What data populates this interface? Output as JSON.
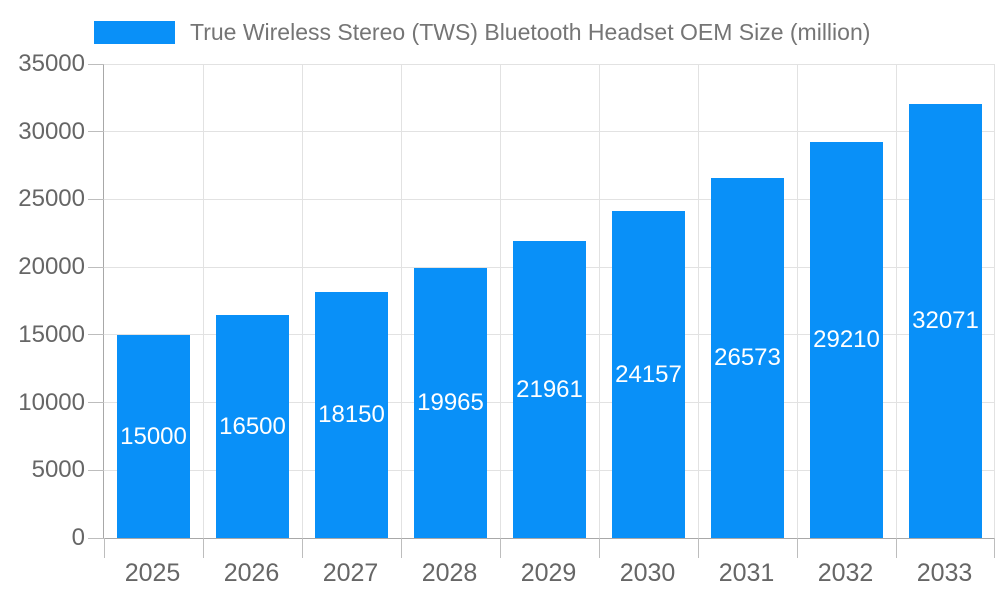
{
  "colors": {
    "bar": "#0990f8",
    "grid": "#e2e2e2",
    "axis_line": "#a8a8a8",
    "tick": "#bdbdbd",
    "axis_text": "#666666",
    "legend_text": "#757575",
    "value_label_text": "#ffffff",
    "background": "#ffffff"
  },
  "chart_data": {
    "type": "bar",
    "title": "True Wireless Stereo (TWS) Bluetooth Headset OEM Size (million)",
    "legend_position": "top-left",
    "categories": [
      "2025",
      "2026",
      "2027",
      "2028",
      "2029",
      "2030",
      "2031",
      "2032",
      "2033"
    ],
    "series": [
      {
        "name": "True Wireless Stereo (TWS) Bluetooth Headset OEM Size (million)",
        "values": [
          15000,
          16500,
          18150,
          19965,
          21961,
          24157,
          26573,
          29210,
          32071
        ]
      }
    ],
    "xlabel": "",
    "ylabel": "",
    "ylim": [
      0,
      35000
    ],
    "yticks": [
      0,
      5000,
      10000,
      15000,
      20000,
      25000,
      30000,
      35000
    ],
    "grid": true,
    "value_labels": "white, centered inside bars"
  }
}
